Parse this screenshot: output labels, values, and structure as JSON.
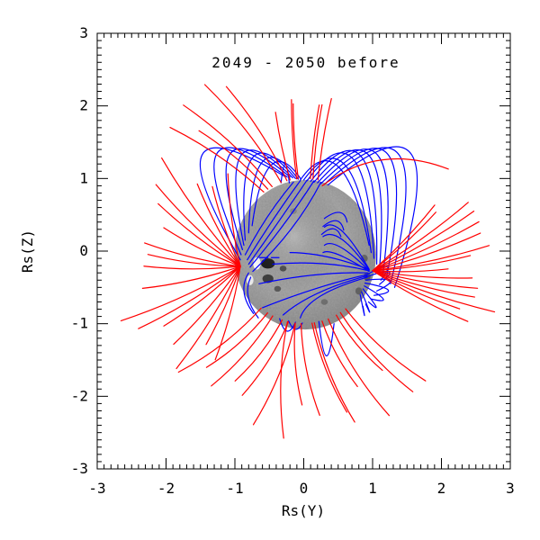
{
  "title": "2049 - 2050 before",
  "axes": {
    "xlabel": "Rs(Y)",
    "ylabel": "Rs(Z)"
  },
  "colors": {
    "background": "#ffffff",
    "axis": "#000000",
    "open_field": "#ff0000",
    "closed_field": "#0000ff",
    "sun_gray": "#9c9c9c"
  },
  "chart_data": {
    "type": "line",
    "subtype": "solar-magnetic-field-line-map",
    "title": "2049 - 2050 before",
    "xlabel": "Rs(Y)",
    "ylabel": "Rs(Z)",
    "xlim": [
      -3,
      3
    ],
    "ylim": [
      -3,
      3
    ],
    "xticks": [
      -3,
      -2,
      -1,
      0,
      1,
      2,
      3
    ],
    "yticks": [
      -3,
      -2,
      -1,
      0,
      1,
      2,
      3
    ],
    "minor_tick_step": 0.1,
    "grid": false,
    "legend": null,
    "sun_disk": {
      "center": [
        0.02,
        -0.05
      ],
      "radius": 1.03,
      "fill": "#9c9c9c"
    },
    "active_regions": [
      {
        "x": -0.68,
        "z": -0.17,
        "rx": 0.055,
        "rz": 0.085,
        "color": "#ffffff"
      },
      {
        "x": -0.52,
        "z": -0.17,
        "rx": 0.1,
        "rz": 0.07,
        "color": "#161616"
      },
      {
        "x": -0.78,
        "z": -0.4,
        "rx": 0.05,
        "rz": 0.07,
        "color": "#f2f2f2"
      },
      {
        "x": -0.52,
        "z": -0.38,
        "rx": 0.08,
        "rz": 0.06,
        "color": "#3a3a3a"
      },
      {
        "x": -0.3,
        "z": -0.24,
        "rx": 0.05,
        "rz": 0.04,
        "color": "#4a4a4a"
      },
      {
        "x": -0.38,
        "z": -0.52,
        "rx": 0.05,
        "rz": 0.04,
        "color": "#555555"
      },
      {
        "x": 0.88,
        "z": -0.1,
        "rx": 0.05,
        "rz": 0.05,
        "color": "#6a6a6a"
      },
      {
        "x": 0.92,
        "z": -0.35,
        "rx": 0.05,
        "rz": 0.06,
        "color": "#606060"
      },
      {
        "x": 0.8,
        "z": -0.55,
        "rx": 0.05,
        "rz": 0.05,
        "color": "#6a6a6a"
      },
      {
        "x": 0.3,
        "z": -0.7,
        "rx": 0.05,
        "rz": 0.04,
        "color": "#737373"
      },
      {
        "x": -0.15,
        "z": 0.55,
        "rx": 0.05,
        "rz": 0.04,
        "color": "#808080"
      }
    ],
    "open_field": {
      "color": "#ff0000",
      "clusters": [
        {
          "name": "left-fan",
          "mode": "point",
          "origin": [
            -0.92,
            -0.21
          ],
          "angle_start": 100,
          "angle_end": 256,
          "count": 18,
          "len_min": 1.15,
          "len_max": 1.9,
          "bend": 6,
          "jitter": 6
        },
        {
          "name": "upper-left",
          "mode": "limb",
          "angle_start": 106,
          "angle_end": 126,
          "tilt": 20,
          "count": 5,
          "len_min": 1.2,
          "len_max": 1.85,
          "bend": -8,
          "jitter": 4
        },
        {
          "name": "top",
          "mode": "limb",
          "angle_start": 76,
          "angle_end": 103,
          "tilt": 0,
          "count": 6,
          "len_min": 0.95,
          "len_max": 1.15,
          "bend": 4,
          "jitter": 5
        },
        {
          "name": "right-fan",
          "mode": "point",
          "origin": [
            1.0,
            -0.27
          ],
          "angle_start": -27,
          "angle_end": 44,
          "count": 15,
          "len_min": 0.95,
          "len_max": 1.92,
          "bend": -5,
          "jitter": 5
        },
        {
          "name": "bottom-left",
          "mode": "limb",
          "angle_start": 234,
          "angle_end": 262,
          "tilt": -18,
          "count": 6,
          "len_min": 1.05,
          "len_max": 1.65,
          "bend": 10,
          "jitter": 5
        },
        {
          "name": "bottom-right",
          "mode": "limb",
          "angle_start": 258,
          "angle_end": 306,
          "tilt": 14,
          "count": 10,
          "len_min": 1.0,
          "len_max": 1.62,
          "bend": -10,
          "jitter": 6
        }
      ],
      "curves": [
        [
          0.27,
          0.9,
          1.1,
          1.5,
          2.1,
          1.13
        ]
      ]
    },
    "closed_field": {
      "color": "#0000ff",
      "curves": [
        [
          -0.04,
          0.99,
          -0.55,
          1.7,
          -0.75,
          0.35
        ],
        [
          -0.08,
          0.99,
          -0.75,
          1.85,
          -0.8,
          0.25
        ],
        [
          -0.12,
          1.0,
          -1.0,
          2.0,
          -0.85,
          0.15
        ],
        [
          -0.16,
          1.01,
          -1.3,
          2.1,
          -0.87,
          0.08
        ],
        [
          -0.2,
          1.02,
          -1.6,
          2.15,
          -0.89,
          0.02
        ],
        [
          -0.24,
          1.02,
          -1.95,
          2.2,
          -0.91,
          -0.05
        ],
        [
          -0.28,
          1.03,
          -2.35,
          2.2,
          -0.92,
          -0.12
        ],
        [
          -0.33,
          0.94,
          -0.27,
          1.45,
          -0.21,
          0.94
        ],
        [
          -0.05,
          0.98,
          0.55,
          1.8,
          0.95,
          0.08
        ],
        [
          0.0,
          0.98,
          0.7,
          1.9,
          0.98,
          -0.02
        ],
        [
          0.05,
          0.97,
          0.9,
          2.1,
          1.02,
          -0.1
        ],
        [
          0.1,
          0.96,
          1.1,
          2.2,
          1.06,
          -0.18
        ],
        [
          0.15,
          0.95,
          1.3,
          2.25,
          1.1,
          -0.25
        ],
        [
          0.2,
          0.94,
          1.5,
          2.3,
          1.15,
          -0.32
        ],
        [
          0.25,
          0.93,
          1.75,
          2.35,
          1.2,
          -0.38
        ],
        [
          0.3,
          0.92,
          2.0,
          2.4,
          1.26,
          -0.45
        ],
        [
          0.35,
          0.91,
          2.3,
          2.45,
          1.32,
          -0.5
        ],
        [
          -0.15,
          0.95,
          -0.55,
          0.5,
          -0.85,
          -0.05
        ],
        [
          -0.05,
          0.97,
          -0.45,
          0.45,
          -0.82,
          -0.12
        ],
        [
          0.05,
          0.98,
          -0.35,
          0.42,
          -0.8,
          -0.18
        ],
        [
          0.15,
          0.97,
          -0.25,
          0.38,
          -0.78,
          -0.22
        ],
        [
          0.25,
          0.95,
          -0.1,
          0.3,
          -0.74,
          -0.28
        ],
        [
          0.95,
          -0.25,
          0.5,
          0.5,
          0.3,
          0.33
        ],
        [
          0.95,
          -0.26,
          0.5,
          0.35,
          0.28,
          0.2
        ],
        [
          0.95,
          -0.27,
          0.45,
          0.2,
          0.3,
          0.08
        ],
        [
          0.95,
          -0.28,
          0.4,
          0.05,
          0.28,
          -0.02
        ],
        [
          0.94,
          -0.25,
          0.3,
          -0.02,
          -0.2,
          -0.02
        ],
        [
          0.94,
          -0.27,
          0.3,
          -0.12,
          -0.45,
          -0.18
        ],
        [
          0.93,
          -0.3,
          0.2,
          -0.28,
          -0.65,
          -0.45
        ],
        [
          0.93,
          -0.32,
          0.2,
          -0.48,
          -0.6,
          -0.78
        ],
        [
          0.92,
          -0.34,
          0.1,
          -0.55,
          -0.3,
          -0.88
        ],
        [
          0.92,
          -0.36,
          0.05,
          -0.6,
          -0.05,
          -0.92
        ],
        [
          0.3,
          0.45,
          0.58,
          0.64,
          0.63,
          0.4
        ],
        [
          0.28,
          0.34,
          0.52,
          0.52,
          0.58,
          0.29
        ],
        [
          0.26,
          0.23,
          0.46,
          0.4,
          0.54,
          0.2
        ],
        [
          0.9,
          -0.36,
          1.48,
          -0.16,
          1.1,
          -0.46
        ],
        [
          0.9,
          -0.4,
          1.52,
          -0.34,
          1.06,
          -0.55
        ],
        [
          0.89,
          -0.44,
          1.5,
          -0.55,
          1.02,
          -0.61
        ],
        [
          0.88,
          -0.48,
          1.38,
          -0.75,
          0.98,
          -0.66
        ],
        [
          0.86,
          -0.52,
          1.2,
          -0.92,
          0.94,
          -0.7
        ],
        [
          0.84,
          -0.56,
          1.04,
          -1.02,
          0.9,
          -0.73
        ],
        [
          0.82,
          -0.6,
          0.92,
          -1.08,
          0.86,
          -0.76
        ],
        [
          0.91,
          -0.33,
          1.4,
          -0.05,
          1.12,
          -0.4
        ],
        [
          -0.35,
          -0.93,
          -0.25,
          -1.25,
          -0.12,
          -0.98
        ],
        [
          -0.22,
          -0.96,
          -0.12,
          -1.18,
          -0.02,
          -0.99
        ],
        [
          0.22,
          -0.97,
          0.33,
          -1.9,
          0.44,
          -1.0
        ],
        [
          -0.8,
          -0.3,
          -0.97,
          -0.55,
          -0.73,
          -0.86
        ],
        [
          -0.77,
          -0.36,
          -0.9,
          -0.62,
          -0.66,
          -0.92
        ]
      ],
      "segments": [
        [
          -0.64,
          -0.09,
          -0.52,
          -0.09
        ],
        [
          -0.47,
          -0.09,
          -0.36,
          -0.09
        ]
      ]
    }
  }
}
